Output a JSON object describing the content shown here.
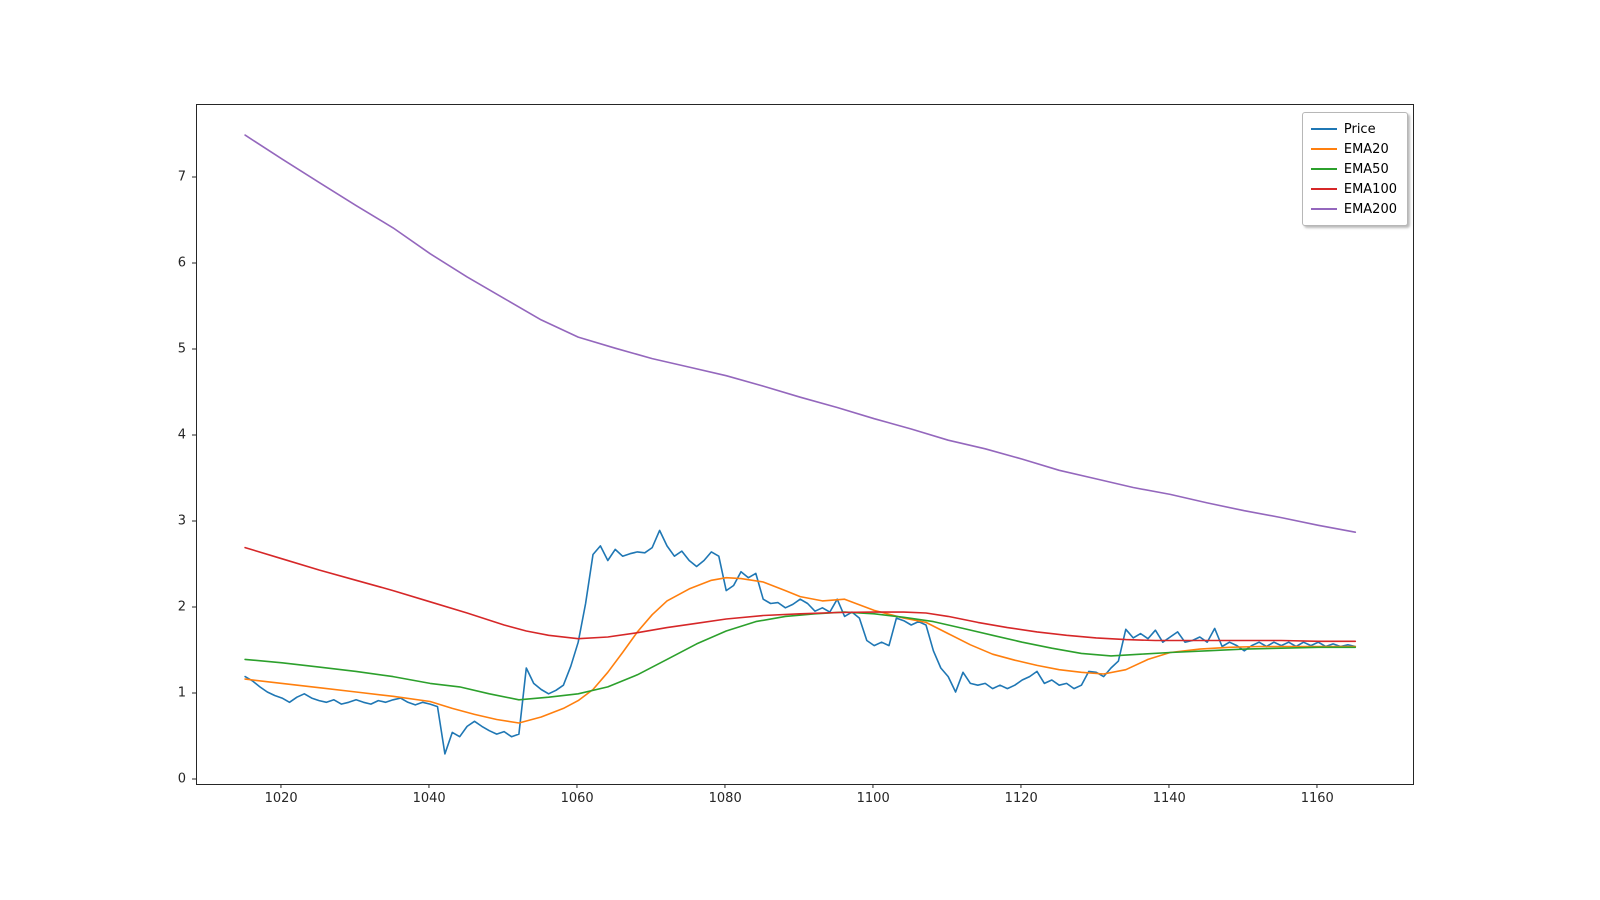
{
  "figure": {
    "background": "#ffffff",
    "axes_edge_color": "#262626"
  },
  "chart_data": {
    "type": "line",
    "title": "",
    "xlabel": "",
    "ylabel": "",
    "grid": false,
    "xlim": [
      1008.5,
      1172.8
    ],
    "ylim": [
      -0.05,
      7.85
    ],
    "xticks": [
      1020,
      1040,
      1060,
      1080,
      1100,
      1120,
      1140,
      1160
    ],
    "yticks": [
      0,
      1,
      2,
      3,
      4,
      5,
      6,
      7
    ],
    "legend": {
      "position": "upper right",
      "entries": [
        "Price",
        "EMA20",
        "EMA50",
        "EMA100",
        "EMA200"
      ]
    },
    "series": [
      {
        "name": "Price",
        "color": "#1f77b4",
        "x_start": 1015,
        "x_step": 1,
        "y": [
          1.2,
          1.15,
          1.08,
          1.02,
          0.98,
          0.95,
          0.9,
          0.96,
          1.0,
          0.95,
          0.92,
          0.9,
          0.93,
          0.88,
          0.9,
          0.93,
          0.9,
          0.88,
          0.92,
          0.9,
          0.93,
          0.95,
          0.9,
          0.87,
          0.9,
          0.88,
          0.85,
          0.3,
          0.55,
          0.5,
          0.62,
          0.68,
          0.62,
          0.57,
          0.53,
          0.56,
          0.5,
          0.53,
          1.3,
          1.12,
          1.05,
          1.0,
          1.04,
          1.1,
          1.32,
          1.6,
          2.05,
          2.62,
          2.72,
          2.55,
          2.68,
          2.6,
          2.63,
          2.65,
          2.64,
          2.7,
          2.9,
          2.72,
          2.6,
          2.66,
          2.55,
          2.48,
          2.55,
          2.65,
          2.6,
          2.2,
          2.26,
          2.42,
          2.35,
          2.4,
          2.1,
          2.05,
          2.06,
          2.0,
          2.04,
          2.1,
          2.05,
          1.96,
          2.0,
          1.95,
          2.1,
          1.9,
          1.95,
          1.88,
          1.62,
          1.56,
          1.6,
          1.56,
          1.88,
          1.85,
          1.8,
          1.84,
          1.8,
          1.5,
          1.3,
          1.2,
          1.02,
          1.25,
          1.12,
          1.1,
          1.12,
          1.06,
          1.1,
          1.06,
          1.1,
          1.16,
          1.2,
          1.26,
          1.12,
          1.16,
          1.1,
          1.12,
          1.06,
          1.1,
          1.26,
          1.25,
          1.2,
          1.3,
          1.38,
          1.75,
          1.65,
          1.7,
          1.64,
          1.74,
          1.6,
          1.66,
          1.72,
          1.6,
          1.62,
          1.66,
          1.6,
          1.76,
          1.55,
          1.6,
          1.56,
          1.5,
          1.56,
          1.6,
          1.55,
          1.6,
          1.56,
          1.6,
          1.55,
          1.6,
          1.56,
          1.6,
          1.55,
          1.58,
          1.55,
          1.57,
          1.55
        ]
      },
      {
        "name": "EMA20",
        "color": "#ff7f0e",
        "x": [
          1015,
          1020,
          1025,
          1030,
          1035,
          1040,
          1043,
          1046,
          1049,
          1052,
          1055,
          1058,
          1060,
          1062,
          1064,
          1066,
          1068,
          1070,
          1072,
          1075,
          1078,
          1080,
          1082,
          1085,
          1088,
          1090,
          1093,
          1096,
          1100,
          1104,
          1107,
          1110,
          1113,
          1116,
          1119,
          1122,
          1125,
          1128,
          1131,
          1134,
          1137,
          1140,
          1144,
          1148,
          1152,
          1156,
          1160,
          1165
        ],
        "y": [
          1.17,
          1.12,
          1.07,
          1.02,
          0.97,
          0.91,
          0.83,
          0.76,
          0.7,
          0.66,
          0.73,
          0.83,
          0.92,
          1.05,
          1.25,
          1.48,
          1.72,
          1.92,
          2.08,
          2.22,
          2.32,
          2.35,
          2.34,
          2.3,
          2.2,
          2.13,
          2.08,
          2.1,
          1.97,
          1.88,
          1.83,
          1.7,
          1.57,
          1.46,
          1.39,
          1.33,
          1.28,
          1.25,
          1.23,
          1.28,
          1.4,
          1.48,
          1.52,
          1.54,
          1.55,
          1.55,
          1.55,
          1.55
        ]
      },
      {
        "name": "EMA50",
        "color": "#2ca02c",
        "x": [
          1015,
          1020,
          1025,
          1030,
          1035,
          1040,
          1044,
          1048,
          1052,
          1056,
          1060,
          1064,
          1068,
          1072,
          1076,
          1080,
          1084,
          1088,
          1092,
          1096,
          1100,
          1104,
          1108,
          1112,
          1116,
          1120,
          1124,
          1128,
          1132,
          1136,
          1140,
          1145,
          1150,
          1155,
          1160,
          1165
        ],
        "y": [
          1.4,
          1.36,
          1.31,
          1.26,
          1.2,
          1.12,
          1.08,
          1.0,
          0.93,
          0.96,
          1.0,
          1.08,
          1.22,
          1.4,
          1.58,
          1.73,
          1.84,
          1.9,
          1.93,
          1.95,
          1.93,
          1.89,
          1.84,
          1.76,
          1.68,
          1.6,
          1.53,
          1.47,
          1.44,
          1.46,
          1.48,
          1.5,
          1.52,
          1.53,
          1.54,
          1.54
        ]
      },
      {
        "name": "EMA100",
        "color": "#d62728",
        "x": [
          1015,
          1020,
          1025,
          1030,
          1035,
          1040,
          1045,
          1050,
          1053,
          1056,
          1060,
          1064,
          1068,
          1072,
          1076,
          1080,
          1085,
          1090,
          1095,
          1100,
          1104,
          1107,
          1110,
          1114,
          1118,
          1122,
          1126,
          1130,
          1134,
          1138,
          1142,
          1146,
          1150,
          1155,
          1160,
          1165
        ],
        "y": [
          2.7,
          2.57,
          2.44,
          2.32,
          2.2,
          2.07,
          1.94,
          1.8,
          1.73,
          1.68,
          1.64,
          1.66,
          1.71,
          1.77,
          1.82,
          1.87,
          1.91,
          1.93,
          1.945,
          1.95,
          1.95,
          1.94,
          1.9,
          1.83,
          1.77,
          1.72,
          1.68,
          1.65,
          1.63,
          1.62,
          1.62,
          1.62,
          1.62,
          1.62,
          1.61,
          1.61
        ]
      },
      {
        "name": "EMA200",
        "color": "#9467bd",
        "x": [
          1015,
          1020,
          1025,
          1030,
          1035,
          1040,
          1045,
          1050,
          1055,
          1060,
          1065,
          1070,
          1075,
          1080,
          1085,
          1090,
          1095,
          1100,
          1105,
          1110,
          1115,
          1120,
          1125,
          1130,
          1135,
          1140,
          1145,
          1150,
          1155,
          1160,
          1165
        ],
        "y": [
          7.5,
          7.22,
          6.95,
          6.68,
          6.42,
          6.12,
          5.85,
          5.6,
          5.35,
          5.15,
          5.02,
          4.9,
          4.8,
          4.7,
          4.58,
          4.45,
          4.33,
          4.2,
          4.08,
          3.95,
          3.85,
          3.73,
          3.6,
          3.5,
          3.4,
          3.32,
          3.22,
          3.13,
          3.05,
          2.96,
          2.88
        ]
      }
    ]
  }
}
